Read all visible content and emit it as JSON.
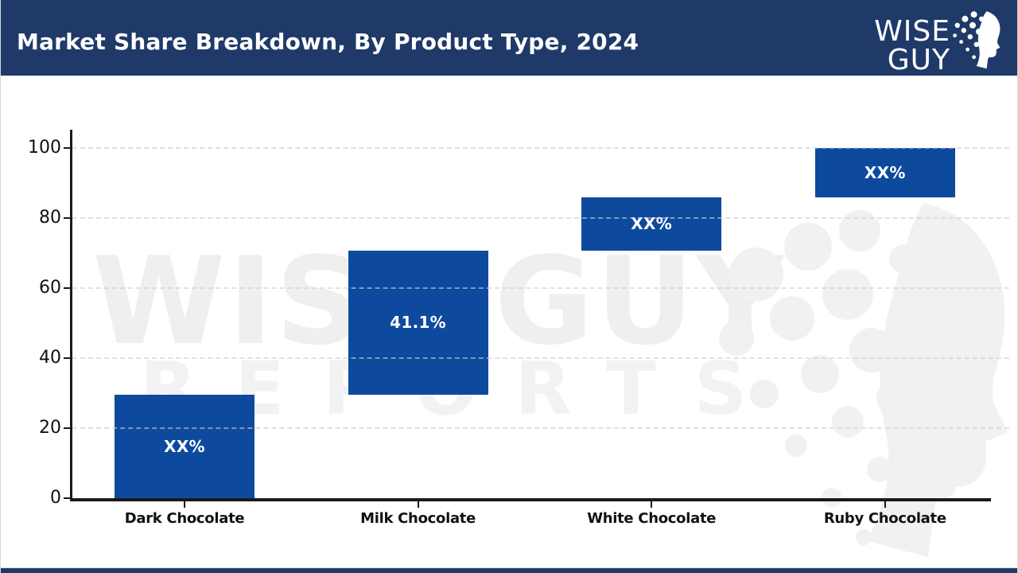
{
  "header": {
    "title": "Market Share Breakdown, By Product Type, 2024",
    "logo": {
      "line1": "WISE GUY",
      "line2": "REPORTS"
    }
  },
  "watermark": {
    "line1": "WISE GUY",
    "line2": "REPORTS"
  },
  "colors": {
    "header_bg": "#1f3a68",
    "bar": "#0d4a9e",
    "bar_label": "#ffffff",
    "grid": "#d9d9d9",
    "axis": "#1a1a1a",
    "watermark": "#efefef"
  },
  "chart_data": {
    "type": "bar",
    "subtype": "floating-waterfall",
    "title": "Market Share Breakdown, By Product Type, 2024",
    "categories": [
      "Dark Chocolate",
      "Milk Chocolate",
      "White Chocolate",
      "Ruby Chocolate"
    ],
    "segments": [
      {
        "category": "Dark Chocolate",
        "start": 0,
        "end": 29.6,
        "label": "XX%"
      },
      {
        "category": "Milk Chocolate",
        "start": 29.6,
        "end": 70.7,
        "label": "41.1%"
      },
      {
        "category": "White Chocolate",
        "start": 70.7,
        "end": 85.9,
        "label": "XX%"
      },
      {
        "category": "Ruby Chocolate",
        "start": 85.9,
        "end": 100,
        "label": "XX%"
      }
    ],
    "yticks": [
      0,
      20,
      40,
      60,
      80,
      100
    ],
    "ylim": [
      0,
      105
    ],
    "xlabel": "",
    "ylabel": "",
    "grid": "dashed-horizontal",
    "legend": "none"
  }
}
